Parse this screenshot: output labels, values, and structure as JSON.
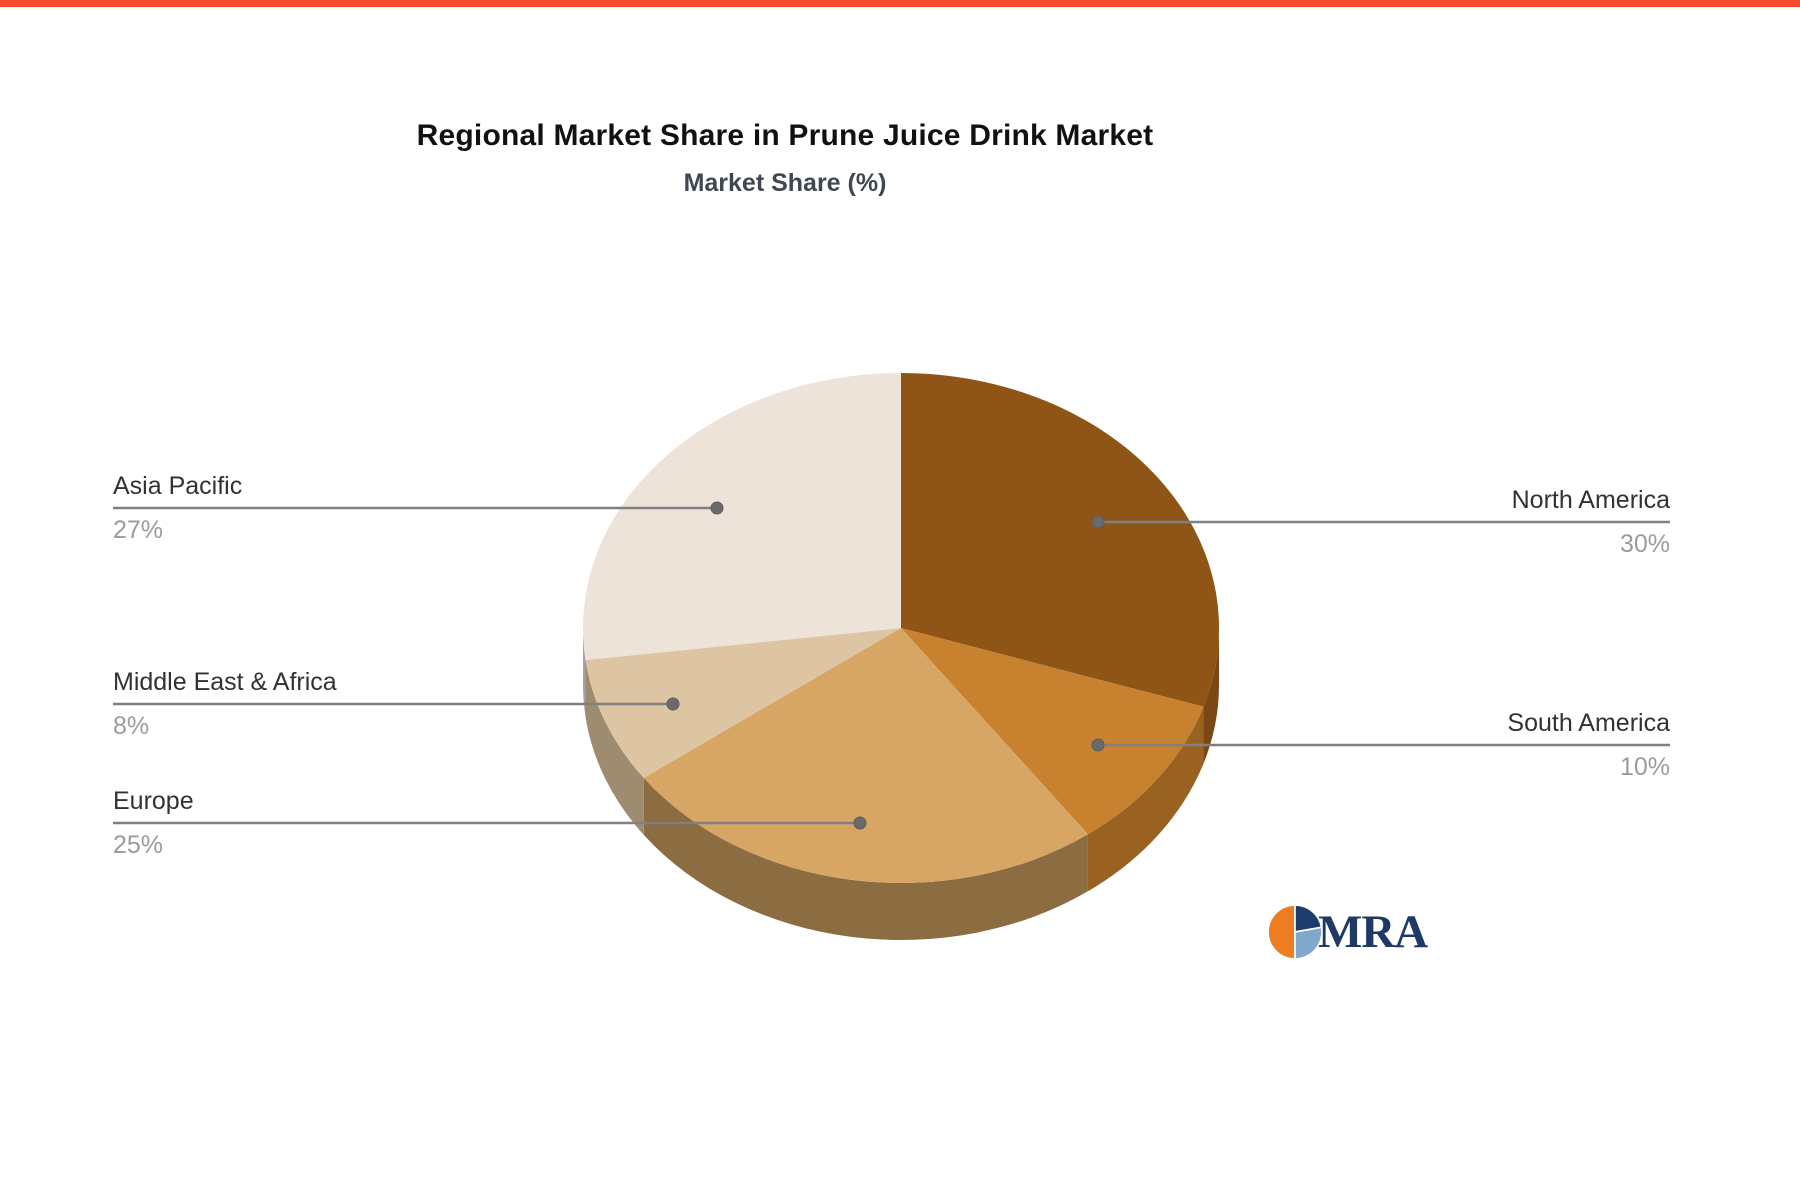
{
  "page": {
    "accent_bar_color": "#f7492e",
    "background_color": "#ffffff"
  },
  "header": {
    "title": "Regional Market Share in Prune Juice Drink Market",
    "subtitle": "Market Share (%)"
  },
  "chart_data": {
    "type": "pie",
    "style": "3d-pie",
    "title": "Regional Market Share in Prune Juice Drink Market",
    "subtitle": "Market Share (%)",
    "unit": "%",
    "start_angle_deg": 0,
    "direction": "clockwise",
    "legend_position": "outside-leader-labels",
    "label_color": "#323232",
    "value_color": "#9b9b9b",
    "leader_line_color": "#808080",
    "leader_dot_color": "#6a6a6a",
    "slices": [
      {
        "label": "North America",
        "value": 30,
        "display": "30%",
        "color": "#8f5517",
        "wall_color": "#7b4715",
        "label_side": "right"
      },
      {
        "label": "South America",
        "value": 10,
        "display": "10%",
        "color": "#c8812f",
        "wall_color": "#9a6220",
        "label_side": "right"
      },
      {
        "label": "Europe",
        "value": 25,
        "display": "25%",
        "color": "#d8a664",
        "wall_color": "#8c6c41",
        "label_side": "left"
      },
      {
        "label": "Middle East & Africa",
        "value": 8,
        "display": "8%",
        "color": "#ddc5a3",
        "wall_color": "#9e8c70",
        "label_side": "left"
      },
      {
        "label": "Asia Pacific",
        "value": 27,
        "display": "27%",
        "color": "#ede3d9",
        "wall_color": "#a8a19a",
        "label_side": "left"
      }
    ]
  },
  "logo": {
    "text": "MRA",
    "colors": {
      "orange": "#ed7d23",
      "navy": "#1d3c6e",
      "blue": "#7fa8cc",
      "text": "#1e3a64"
    }
  }
}
